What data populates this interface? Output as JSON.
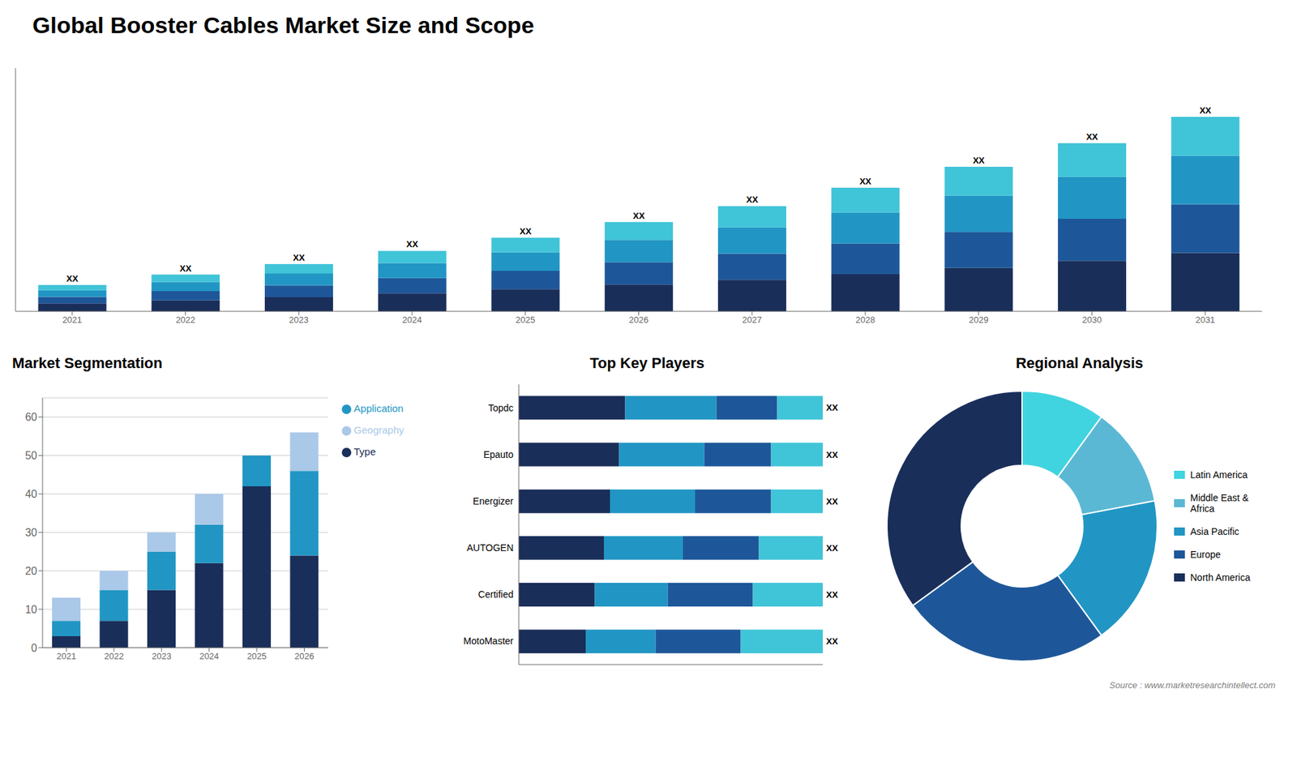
{
  "title": "Global Booster Cables Market Size and Scope",
  "annotations": [
    "Source : www.marketresearchintellect.com"
  ],
  "chart_data": [
    {
      "type": "bar",
      "stacked": true,
      "categories": [
        "2021",
        "2022",
        "2023",
        "2024",
        "2025",
        "2026",
        "2027",
        "2028",
        "2029",
        "2030",
        "2031"
      ],
      "series": [
        {
          "color": "#1a2e5a",
          "values": [
            1.5,
            2.1,
            2.7,
            3.45,
            4.2,
            5.1,
            6.0,
            7.05,
            8.25,
            9.6,
            11.1
          ]
        },
        {
          "color": "#1e5799",
          "values": [
            1.25,
            1.75,
            2.25,
            2.875,
            3.5,
            4.25,
            5.0,
            5.875,
            6.875,
            8.0,
            9.25
          ]
        },
        {
          "color": "#2196c4",
          "values": [
            1.25,
            1.75,
            2.25,
            2.875,
            3.5,
            4.25,
            5.0,
            5.875,
            6.875,
            8.0,
            9.25
          ]
        },
        {
          "color": "#40c4d8",
          "values": [
            1.0,
            1.4,
            1.8,
            2.3,
            2.8,
            3.4,
            4.0,
            4.7,
            5.5,
            6.4,
            7.4
          ],
          "value_labels": [
            "XX",
            "XX",
            "XX",
            "XX",
            "XX",
            "XX",
            "XX",
            "XX",
            "XX",
            "XX",
            "XX"
          ]
        }
      ],
      "ylim": [
        0,
        46.25
      ],
      "tick_labels": "x"
    },
    {
      "type": "bar",
      "title": "Market Segmentation",
      "stacked": true,
      "categories": [
        "2021",
        "2022",
        "2023",
        "2024",
        "2025",
        "2026"
      ],
      "series": [
        {
          "name": "Type",
          "color": "#1a2e5a",
          "marker": "circle",
          "values": [
            3,
            7,
            15,
            22,
            42,
            24
          ]
        },
        {
          "name": "Application",
          "color": "#2196c4",
          "marker": "circle",
          "values": [
            4,
            8,
            10,
            10,
            8,
            22
          ]
        },
        {
          "name": "Geography",
          "color": "#aac8e8",
          "marker": "circle",
          "values": [
            6,
            5,
            5,
            8,
            0,
            10
          ]
        }
      ],
      "ylim": [
        0,
        65
      ],
      "yticks": [
        0,
        10,
        20,
        30,
        40,
        50,
        60
      ],
      "grid": true,
      "legend": "right"
    },
    {
      "type": "bar",
      "title": "Top Key Players",
      "orientation": "horizontal",
      "stacked": true,
      "categories": [
        "Topdc",
        "Epauto",
        "Energizer",
        "AUTOGEN",
        "Certified",
        "MotoMaster"
      ],
      "series": [
        {
          "color": "#1a2e5a",
          "values": [
            0.35,
            0.33,
            0.3,
            0.28,
            0.25,
            0.22
          ]
        },
        {
          "color": "#2196c4",
          "values": [
            0.3,
            0.28,
            0.28,
            0.26,
            0.24,
            0.23
          ]
        },
        {
          "color": "#1e5799",
          "values": [
            0.2,
            0.22,
            0.25,
            0.25,
            0.28,
            0.28
          ]
        },
        {
          "color": "#40c4d8",
          "values": [
            0.15,
            0.17,
            0.17,
            0.21,
            0.23,
            0.27
          ],
          "value_labels": [
            "XX",
            "XX",
            "XX",
            "XX",
            "XX",
            "XX"
          ]
        }
      ],
      "xlim": [
        0,
        1
      ],
      "tick_labels": "y"
    },
    {
      "type": "donut",
      "title": "Regional Analysis",
      "categories": [
        "Latin America",
        "Middle East &\nAfrica",
        "Asia Pacific",
        "Europe",
        "North America"
      ],
      "values": [
        0.1,
        0.12,
        0.18,
        0.25,
        0.35
      ],
      "colors": [
        "#40d4e0",
        "#5bb8d4",
        "#2196c4",
        "#1e5799",
        "#1a2e5a"
      ],
      "legend": "right"
    }
  ]
}
